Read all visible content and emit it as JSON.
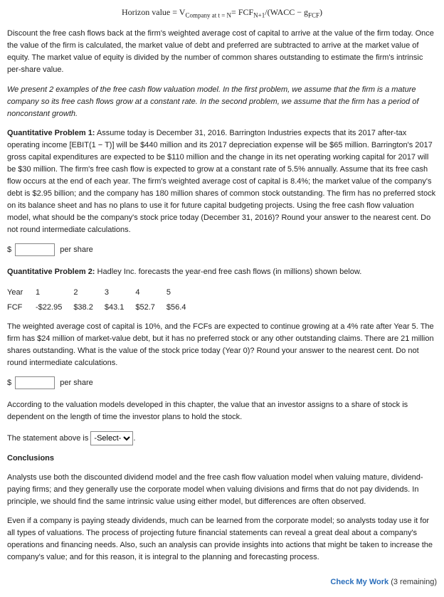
{
  "formula": {
    "lhs": "Horizon value = V",
    "sub1": "Company at t = N",
    "mid": "= FCF",
    "sub2": "N+1",
    "rhs": "/(WACC − g",
    "sub3": "FCF",
    "close": ")"
  },
  "intro": {
    "p1": "Discount the free cash flows back at the firm's weighted average cost of capital to arrive at the value of the firm today. Once the value of the firm is calculated, the market value of debt and preferred are subtracted to arrive at the market value of equity. The market value of equity is divided by the number of common shares outstanding to estimate the firm's intrinsic per-share value.",
    "p2": "We present 2 examples of the free cash flow valuation model. In the first problem, we assume that the firm is a mature company so its free cash flows grow at a constant rate. In the second problem, we assume that the firm has a period of nonconstant growth."
  },
  "q1": {
    "heading": "Quantitative Problem 1:",
    "body": " Assume today is December 31, 2016. Barrington Industries expects that its 2017 after-tax operating income [EBIT(1 − T)] will be $440 million and its 2017 depreciation expense will be $65 million. Barrington's 2017 gross capital expenditures are expected to be $110 million and the change in its net operating working capital for 2017 will be $30 million. The firm's free cash flow is expected to grow at a constant rate of 5.5% annually. Assume that its free cash flow occurs at the end of each year. The firm's weighted average cost of capital is 8.4%; the market value of the company's debt is $2.95 billion; and the company has 180 million shares of common stock outstanding. The firm has no preferred stock on its balance sheet and has no plans to use it for future capital budgeting projects. Using the free cash flow valuation model, what should be the company's stock price today (December 31, 2016)? Round your answer to the nearest cent. Do not round intermediate calculations.",
    "currency": "$",
    "pershare": "per share"
  },
  "q2": {
    "heading": "Quantitative Problem 2:",
    "intro": " Hadley Inc. forecasts the year-end free cash flows (in millions) shown below.",
    "table": {
      "yearLabel": "Year",
      "fcfLabel": "FCF",
      "years": [
        "1",
        "2",
        "3",
        "4",
        "5"
      ],
      "fcf": [
        "-$22.95",
        "$38.2",
        "$43.1",
        "$52.7",
        "$56.4"
      ]
    },
    "body": "The weighted average cost of capital is 10%, and the FCFs are expected to continue growing at a 4% rate after Year 5. The firm has $24 million of market-value debt, but it has no preferred stock or any other outstanding claims. There are 21 million shares outstanding. What is the value of the stock price today (Year 0)? Round your answer to the nearest cent. Do not round intermediate calculations.",
    "currency": "$",
    "pershare": "per share"
  },
  "statement": {
    "p1": "According to the valuation models developed in this chapter, the value that an investor assigns to a share of stock is dependent on the length of time the investor plans to hold the stock.",
    "lead": "The statement above is ",
    "select_placeholder": "-Select-",
    "period": "."
  },
  "conclusions": {
    "heading": "Conclusions",
    "p1": "Analysts use both the discounted dividend model and the free cash flow valuation model when valuing mature, dividend-paying firms; and they generally use the corporate model when valuing divisions and firms that do not pay dividends. In principle, we should find the same intrinsic value using either model, but differences are often observed.",
    "p2": "Even if a company is paying steady dividends, much can be learned from the corporate model; so analysts today use it for all types of valuations. The process of projecting future financial statements can reveal a great deal about a company's operations and financing needs. Also, such an analysis can provide insights into actions that might be taken to increase the company's value; and for this reason, it is integral to the planning and forecasting process."
  },
  "footer": {
    "check": "Check My Work",
    "remaining": " (3 remaining)"
  }
}
